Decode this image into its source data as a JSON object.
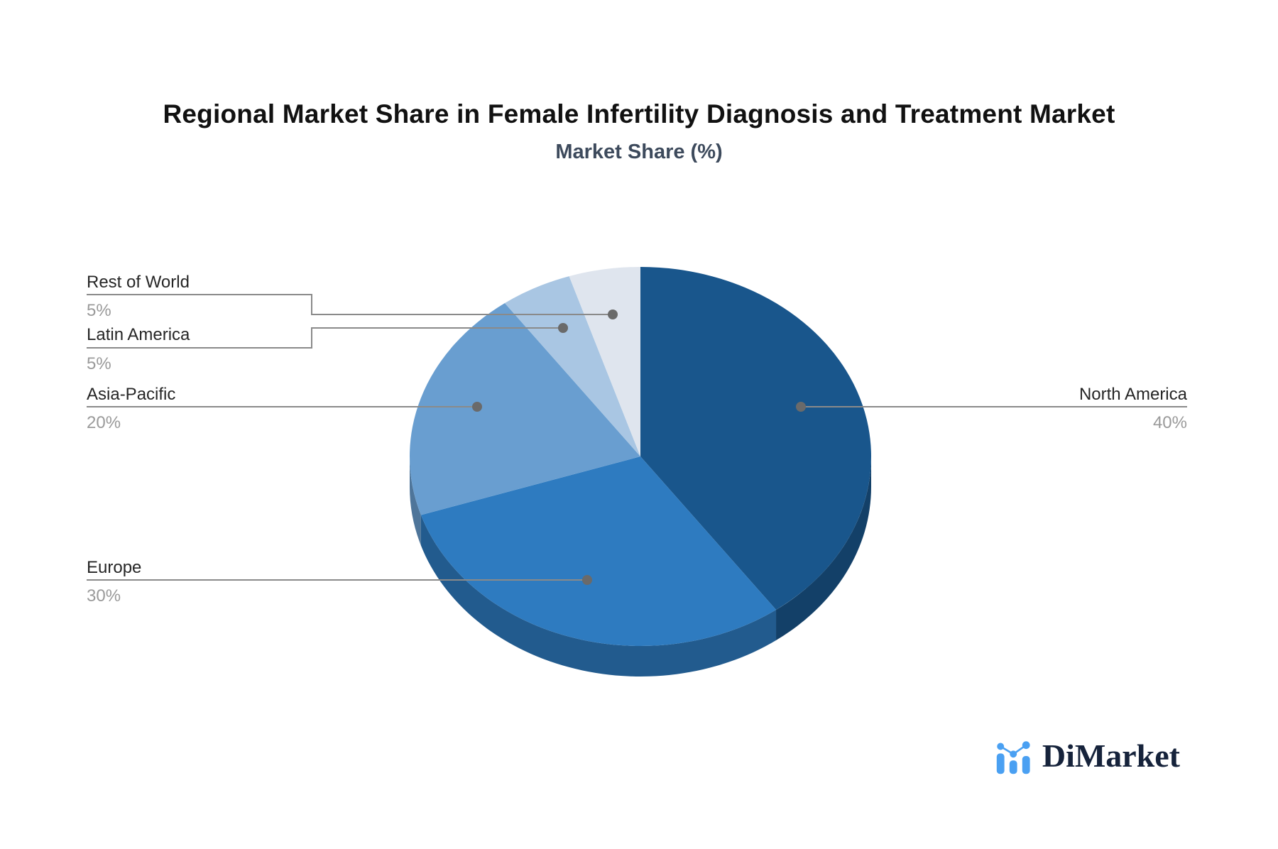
{
  "chart_data": {
    "type": "pie",
    "title": "Regional Market Share in Female Infertility Diagnosis and Treatment Market",
    "subtitle": "Market Share (%)",
    "unit": "%",
    "style": "3d-pie",
    "direction": "clockwise",
    "start_angle_deg": 0,
    "legend": "none",
    "categories": [
      "North America",
      "Europe",
      "Asia-Pacific",
      "Latin America",
      "Rest of World"
    ],
    "values": [
      40,
      30,
      20,
      5,
      5
    ],
    "slices": [
      {
        "label": "North America",
        "value_pct": 40,
        "display": "40%",
        "color": "#19568C",
        "label_side": "right"
      },
      {
        "label": "Europe",
        "value_pct": 30,
        "display": "30%",
        "color": "#2E7BC0",
        "label_side": "left"
      },
      {
        "label": "Asia-Pacific",
        "value_pct": 20,
        "display": "20%",
        "color": "#699ED0",
        "label_side": "left"
      },
      {
        "label": "Latin America",
        "value_pct": 5,
        "display": "5%",
        "color": "#A9C6E3",
        "label_side": "left"
      },
      {
        "label": "Rest of World",
        "value_pct": 5,
        "display": "5%",
        "color": "#DFE5EE",
        "label_side": "left"
      }
    ]
  },
  "branding": {
    "logo_text": "DiMarket",
    "logo_icon": "bar-line-chart-icon",
    "logo_bar_color": "#4AA0F2",
    "logo_text_color": "#16233B"
  }
}
